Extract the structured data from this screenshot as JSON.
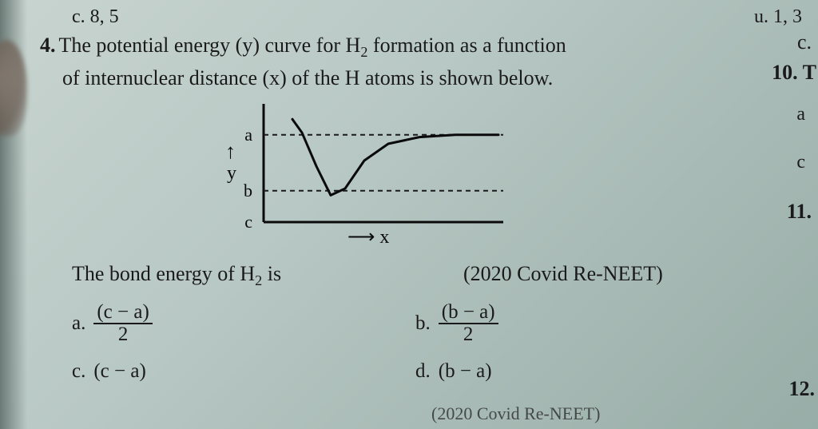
{
  "fragments": {
    "top_left": "c. 8, 5",
    "top_right": "u. 1, 3",
    "right_c": "c.",
    "right_10": "10. T",
    "right_a": "a",
    "right_c2": "c",
    "q11": "11.",
    "q12": "12.",
    "bottom": "(2020 Covid Re-NEET)"
  },
  "question": {
    "number": "4.",
    "line1": "The potential energy (y) curve for H",
    "sub1": "2",
    "line1b": " formation as a function",
    "line2": "of internuclear distance (x) of the H atoms is shown below."
  },
  "bond_text": {
    "left": "The bond energy of H",
    "sub": "2",
    "left2": " is",
    "right": "(2020 Covid Re-NEET)"
  },
  "options": {
    "a": {
      "letter": "a.",
      "num": "(c − a)",
      "den": "2"
    },
    "b": {
      "letter": "b.",
      "num": "(b − a)",
      "den": "2"
    },
    "c": {
      "letter": "c.",
      "text": "(c − a)"
    },
    "d": {
      "letter": "d.",
      "text": "(b − a)"
    }
  },
  "chart": {
    "type": "line",
    "xlabel": "x",
    "ylabel": "y",
    "y_levels": {
      "a": 0.78,
      "b": 0.28,
      "c": 0.1
    },
    "curve": [
      [
        0.12,
        0.92
      ],
      [
        0.16,
        0.8
      ],
      [
        0.22,
        0.5
      ],
      [
        0.28,
        0.24
      ],
      [
        0.34,
        0.3
      ],
      [
        0.42,
        0.55
      ],
      [
        0.52,
        0.7
      ],
      [
        0.65,
        0.76
      ],
      [
        0.8,
        0.78
      ],
      [
        0.98,
        0.78
      ]
    ],
    "axis_color": "#0a0a0a",
    "curve_color": "#0a0a0a",
    "dash_color": "#1a1a1a",
    "curve_width": 3,
    "axis_width": 3,
    "background": "transparent",
    "labels": {
      "a": "a",
      "b": "b",
      "c": "c"
    },
    "arrow_x": "→ x",
    "arrow_y_char": "↑"
  }
}
